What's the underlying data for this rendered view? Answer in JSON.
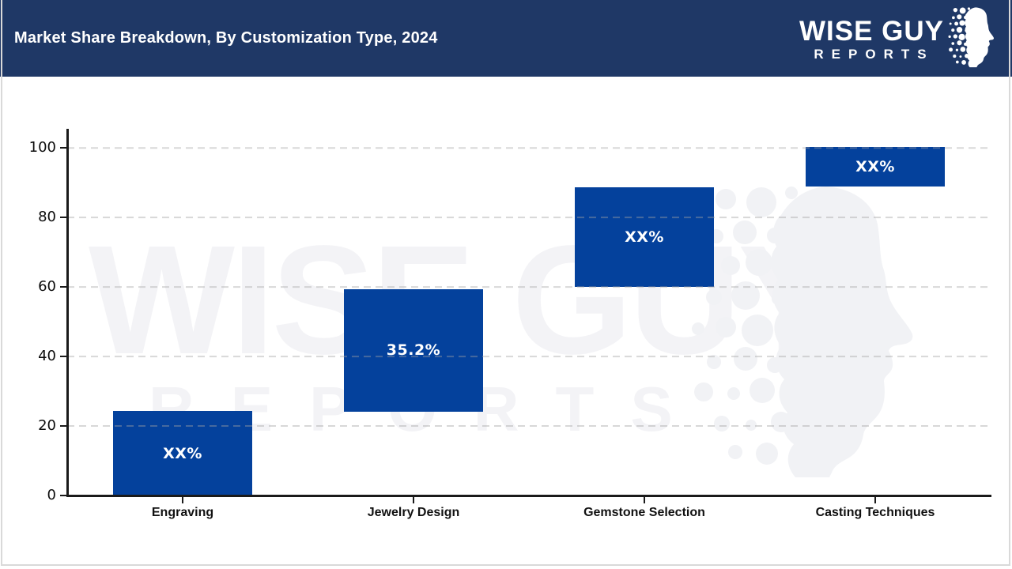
{
  "header": {
    "title": "Market Share Breakdown, By Customization Type, 2024",
    "logo": {
      "name": "WISE GUY",
      "sub": "REPORTS"
    }
  },
  "watermark": {
    "line1": "WISE GUY",
    "line2": "REPORTS"
  },
  "colors": {
    "header_bg": "#1f3866",
    "bar": "#04419c",
    "axis": "#1a1a1a",
    "gridline": "#d9d9d9",
    "watermark": "#f3f3f6",
    "bar_label": "#ffffff"
  },
  "chart_data": {
    "type": "bar",
    "subtype": "waterfall (floating segments stepping up to 100%)",
    "title": "Market Share Breakdown, By Customization Type, 2024",
    "categories": [
      "Engraving",
      "Jewelry Design",
      "Gemstone Selection",
      "Casting Techniques"
    ],
    "bars": [
      {
        "category": "Engraving",
        "start": 0,
        "end": 24.3,
        "value_span": 24.3,
        "label": "XX%"
      },
      {
        "category": "Jewelry Design",
        "start": 24.2,
        "end": 59.4,
        "value_span": 35.2,
        "label": "35.2%"
      },
      {
        "category": "Gemstone Selection",
        "start": 60.0,
        "end": 88.7,
        "value_span": 28.7,
        "label": "XX%"
      },
      {
        "category": "Casting Techniques",
        "start": 88.9,
        "end": 100.2,
        "value_span": 11.3,
        "label": "XX%"
      }
    ],
    "yticks": [
      0,
      20,
      40,
      60,
      80,
      100
    ],
    "ylim": [
      0,
      105.5
    ],
    "xlabel": "",
    "ylabel": "",
    "grid": "horizontal-dashed, drawn over bars",
    "legend": "none",
    "bar_color": "#04419c",
    "label_color": "#ffffff"
  }
}
